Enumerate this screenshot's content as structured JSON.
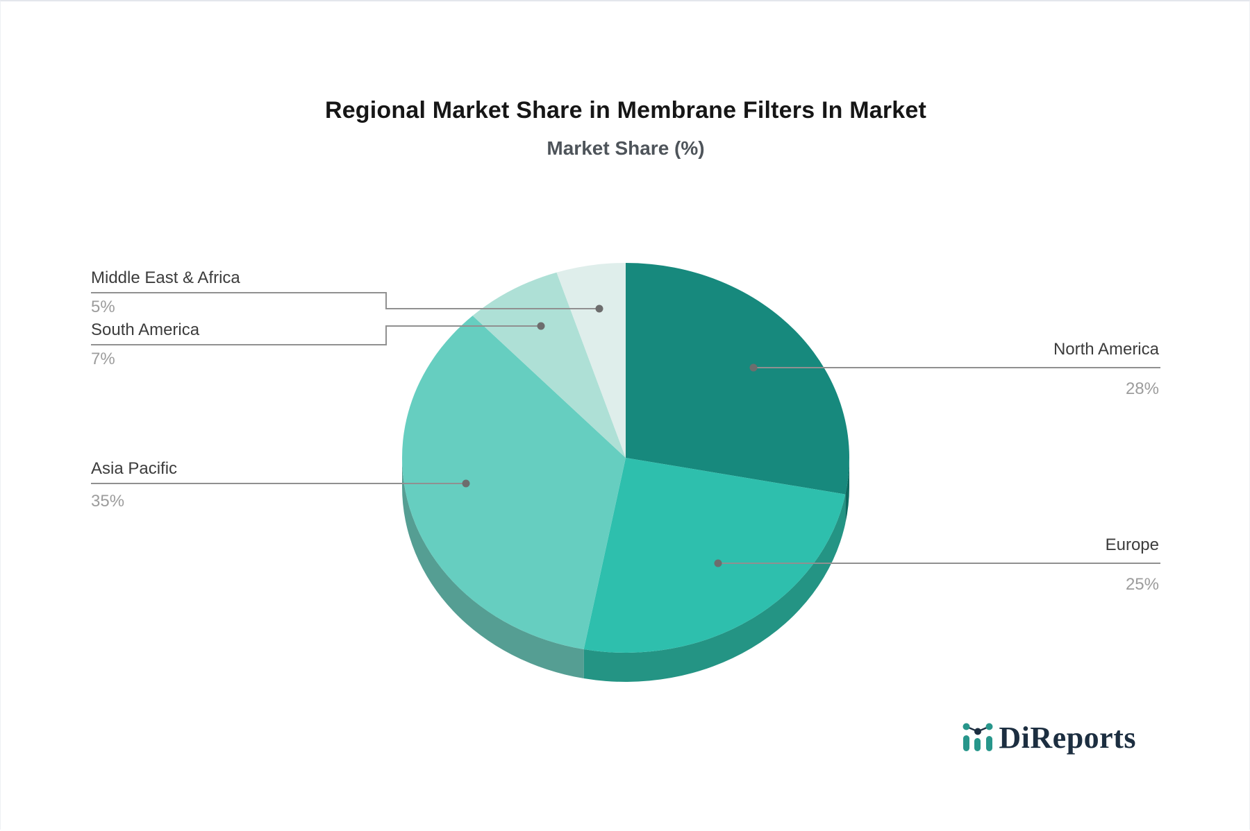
{
  "header": {
    "title": "Regional Market Share in Membrane Filters In Market",
    "subtitle": "Market Share (%)"
  },
  "chart_data": {
    "type": "pie",
    "title": "Regional Market Share in Membrane Filters In Market",
    "subtitle": "Market Share (%)",
    "unit": "%",
    "start_angle_deg": 0,
    "direction": "clockwise",
    "legend_position": "none",
    "style": "3d-pie",
    "connector_color": "#909090",
    "connector_dot_color": "#6d6d6d",
    "slices": [
      {
        "label": "North America",
        "value": 28,
        "display": "28%",
        "color": "#17897D",
        "side_color": "#0E6A60",
        "label_side": "right"
      },
      {
        "label": "Europe",
        "value": 25,
        "display": "25%",
        "color": "#2EBFAD",
        "side_color": "#249484",
        "label_side": "right"
      },
      {
        "label": "Asia Pacific",
        "value": 35,
        "display": "35%",
        "color": "#66CEC0",
        "side_color": "#559E93",
        "label_side": "left"
      },
      {
        "label": "South America",
        "value": 7,
        "display": "7%",
        "color": "#AEE0D6",
        "side_color": "#86B6AC",
        "label_side": "left"
      },
      {
        "label": "Middle East & Africa",
        "value": 5,
        "display": "5%",
        "color": "#DFEEEB",
        "side_color": "#AECBC5",
        "label_side": "left"
      }
    ]
  },
  "logo": {
    "text": "DiReports",
    "icon": "bar-chart-logo-icon",
    "text_color": "#1c2e40",
    "accent_color": "#27968B"
  }
}
